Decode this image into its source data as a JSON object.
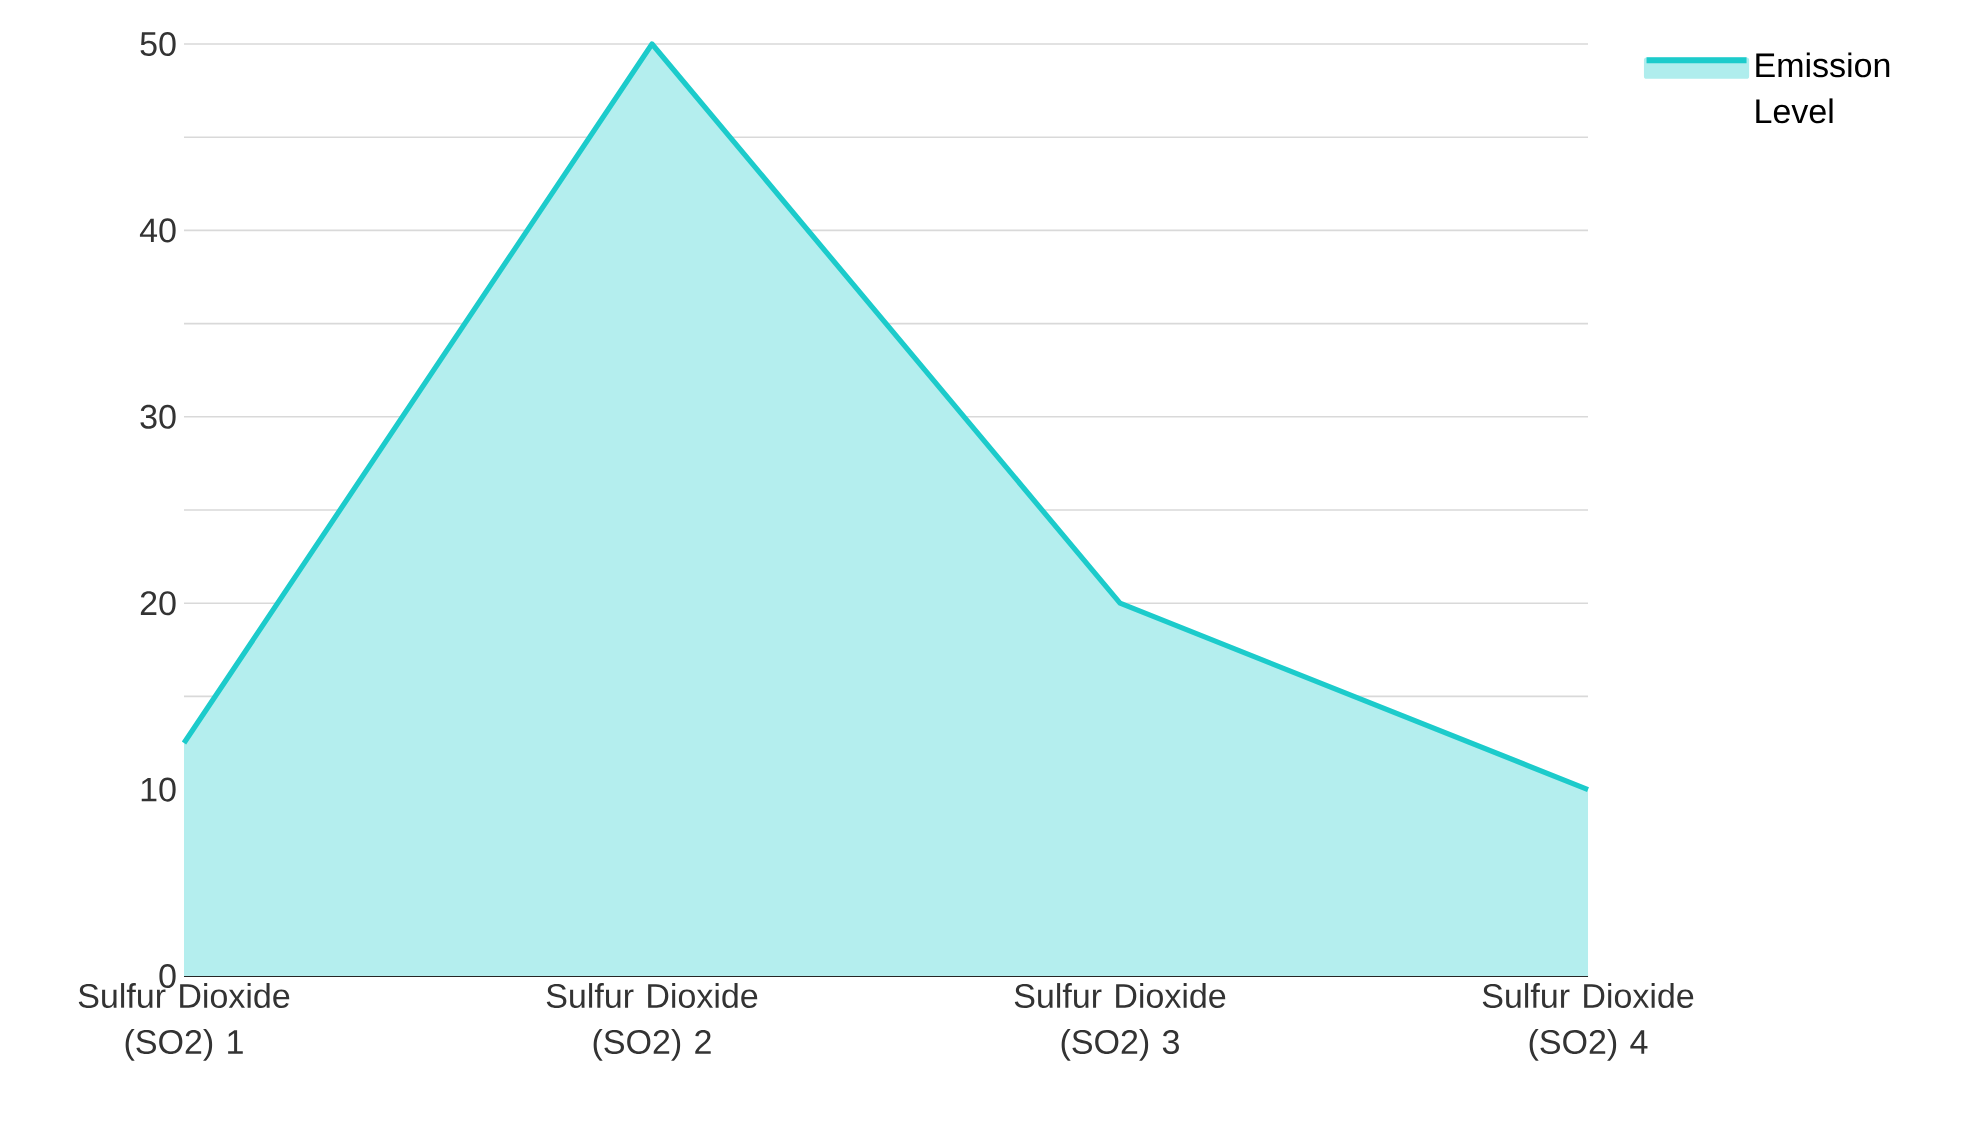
{
  "chart_data": {
    "type": "area",
    "categories": [
      "Sulfur Dioxide (SO2) 1",
      "Sulfur Dioxide (SO2) 2",
      "Sulfur Dioxide (SO2) 3",
      "Sulfur Dioxide (SO2) 4"
    ],
    "series": [
      {
        "name": "Emission Level",
        "color": "#1ccbcb",
        "values": [
          12.5,
          50,
          20,
          10
        ]
      }
    ],
    "ylim": [
      0,
      50
    ],
    "yticks": [
      0,
      {
        "value": 5,
        "label": null
      },
      10,
      {
        "value": 15,
        "label": null
      },
      20,
      {
        "value": 25,
        "label": null
      },
      30,
      {
        "value": 35,
        "label": null
      },
      40,
      {
        "value": 45,
        "label": null
      },
      50
    ],
    "grid": "y",
    "legend": "top right"
  }
}
